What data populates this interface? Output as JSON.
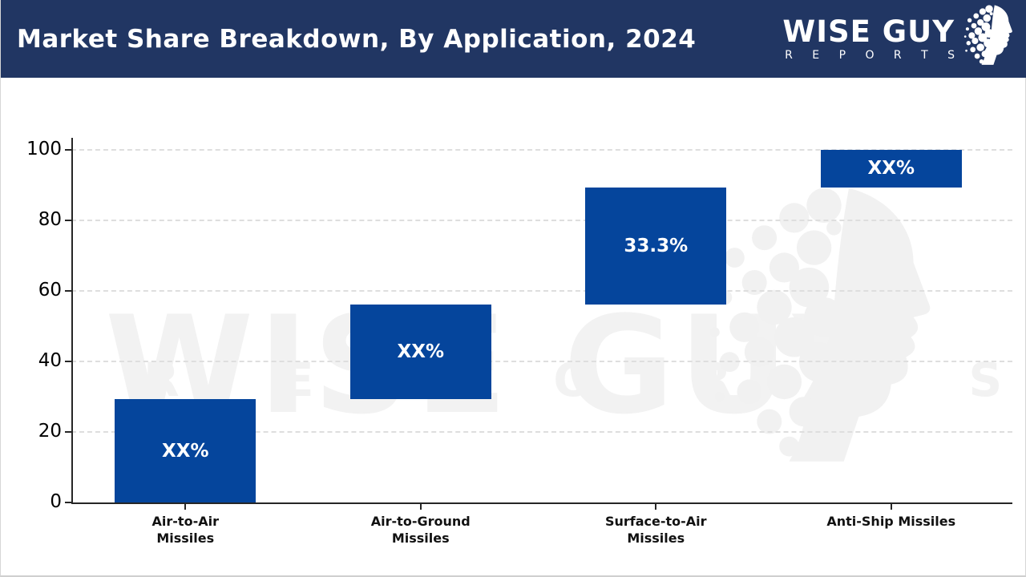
{
  "header": {
    "title": "Market Share Breakdown, By Application, 2024",
    "logo": {
      "line1": "WISE GUY",
      "line2": "R E P O R T S"
    }
  },
  "watermark": {
    "line1": "WISE GUY",
    "line2": "R E P O R T S"
  },
  "colors": {
    "header_bg": "#213663",
    "bar_fill": "#05459c",
    "grid_line": "#dedede",
    "axis_line": "#262626",
    "bar_label_text": "#ffffff",
    "watermark_text": "#f2f2f2"
  },
  "chart_data": {
    "type": "bar",
    "subtype": "waterfall",
    "title": "Market Share Breakdown, By Application, 2024",
    "xlabel": "",
    "ylabel": "",
    "ylim": [
      0,
      100
    ],
    "y_ticks": [
      0,
      20,
      40,
      60,
      80,
      100
    ],
    "grid": "horizontal-dashed",
    "legend": "none",
    "categories": [
      "Air-to-Air Missiles",
      "Air-to-Ground Missiles",
      "Surface-to-Air Missiles",
      "Anti-Ship Missiles"
    ],
    "category_label_lines": [
      [
        "Air-to-Air",
        "Missiles"
      ],
      [
        "Air-to-Ground",
        "Missiles"
      ],
      [
        "Surface-to-Air",
        "Missiles"
      ],
      [
        "Anti-Ship Missiles"
      ]
    ],
    "segments": [
      {
        "category": "Air-to-Air Missiles",
        "start": 0,
        "end": 29.3,
        "label": "XX%"
      },
      {
        "category": "Air-to-Ground Missiles",
        "start": 29.3,
        "end": 56.1,
        "label": "XX%"
      },
      {
        "category": "Surface-to-Air Missiles",
        "start": 56.1,
        "end": 89.4,
        "label": "33.3%"
      },
      {
        "category": "Anti-Ship Missiles",
        "start": 89.4,
        "end": 100,
        "label": "XX%"
      }
    ]
  }
}
